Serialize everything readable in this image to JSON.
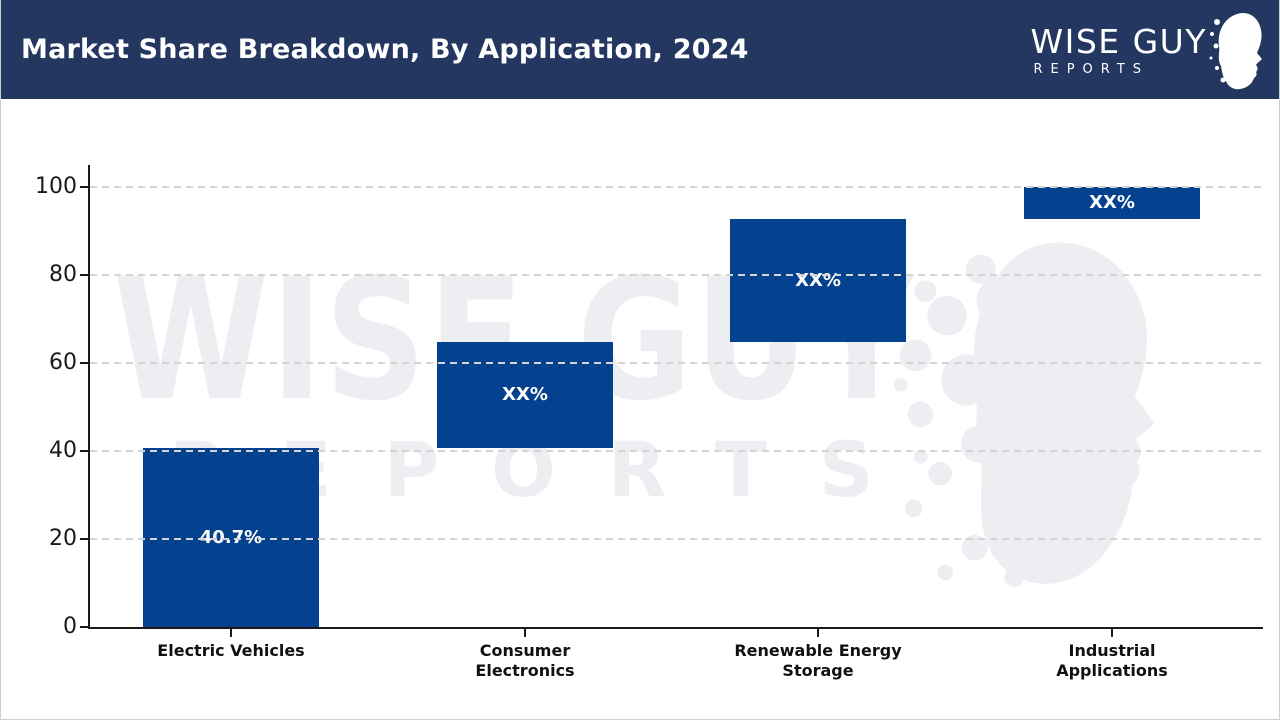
{
  "header": {
    "title": "Market Share Breakdown, By Application, 2024",
    "bg_color": "#233760",
    "logo": {
      "line1": "WISE GUY",
      "line2": "REPORTS"
    }
  },
  "watermark": {
    "line1": "WISE GUY",
    "line2": "REPORTS",
    "color": "#edeef2"
  },
  "chart_data": {
    "type": "bar",
    "subtype": "waterfall-stacked",
    "title": "Market Share Breakdown, By Application, 2024",
    "xlabel": "",
    "ylabel": "",
    "categories": [
      [
        "Electric Vehicles"
      ],
      [
        "Consumer",
        "Electronics"
      ],
      [
        "Renewable Energy",
        "Storage"
      ],
      [
        "Industrial",
        "Applications"
      ]
    ],
    "segments": [
      {
        "name": "Electric Vehicles",
        "start": 0,
        "end": 40.7,
        "label": "40.7%"
      },
      {
        "name": "Consumer Electronics",
        "start": 40.7,
        "end": 64.8,
        "label": "XX%"
      },
      {
        "name": "Renewable Energy Storage",
        "start": 64.8,
        "end": 92.8,
        "label": "XX%"
      },
      {
        "name": "Industrial Applications",
        "start": 92.8,
        "end": 100,
        "label": "XX%"
      }
    ],
    "yticks": [
      0,
      20,
      40,
      60,
      80,
      100
    ],
    "ylim": [
      0,
      105
    ],
    "grid": true,
    "grid_style": "dashed",
    "legend": false,
    "bar_color": "#04418f",
    "label_color": "#ffffff",
    "grid_color": "#d4d4d4"
  }
}
